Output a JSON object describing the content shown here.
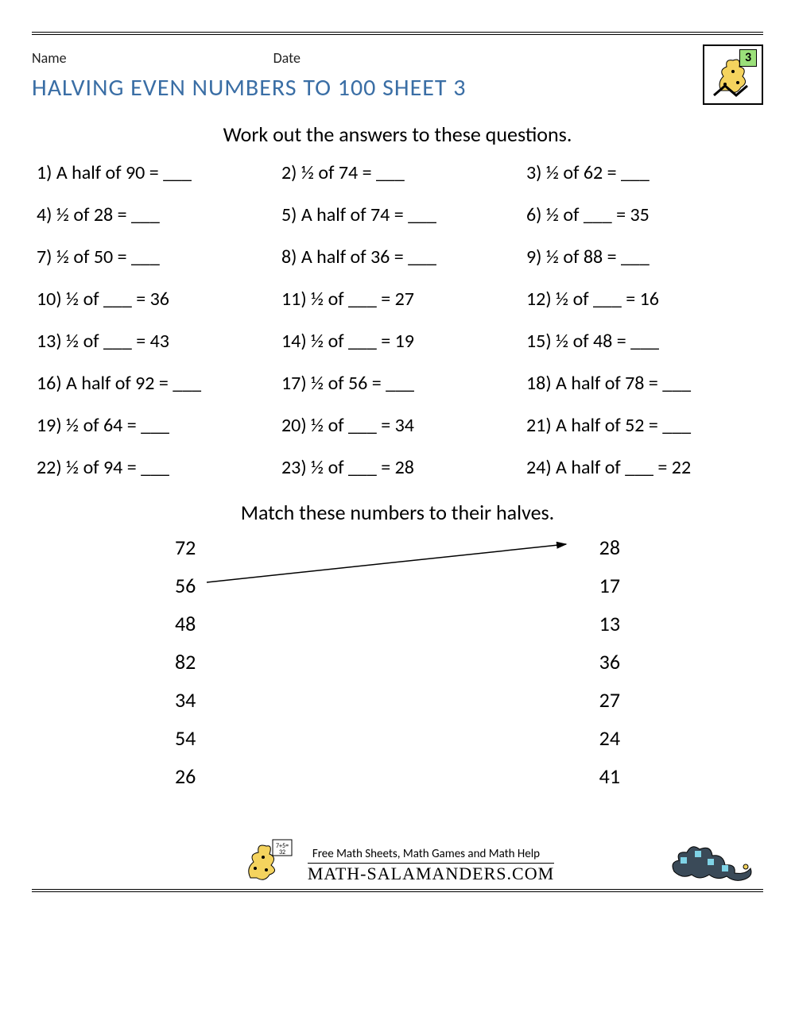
{
  "header": {
    "name_label": "Name",
    "date_label": "Date",
    "grade_number": "3"
  },
  "title": "HALVING EVEN NUMBERS TO 100 SHEET 3",
  "instructions": "Work out the answers to these questions.",
  "questions": [
    "1) A half of 90 = ___",
    "2) ½ of 74 = ___",
    "3) ½ of 62 = ___",
    "4) ½ of 28 = ___",
    "5) A half of 74 = ___",
    "6) ½ of ___ = 35",
    "7) ½ of 50 = ___",
    "8) A half of 36 = ___",
    "9) ½ of 88 = ___",
    "10) ½ of ___ = 36",
    "11) ½ of ___ = 27",
    "12) ½ of ___ = 16",
    "13) ½ of ___ = 43",
    "14) ½ of ___ = 19",
    "15) ½ of 48 = ___",
    "16) A half of 92 = ___",
    "17) ½ of 56 = ___",
    "18) A half of 78 = ___",
    "19) ½ of 64 = ___",
    "20) ½ of ___ = 34",
    "21) A half of 52 = ___",
    "22) ½ of 94 = ___",
    "23) ½ of ___ = 28",
    "24) A half of ___  = 22"
  ],
  "match": {
    "title": "Match these numbers to their halves.",
    "left": [
      "72",
      "56",
      "48",
      "82",
      "34",
      "54",
      "26"
    ],
    "right": [
      "28",
      "17",
      "13",
      "36",
      "27",
      "24",
      "41"
    ],
    "example_line": {
      "from_index": 1,
      "to_index": 0
    }
  },
  "footer": {
    "line1": "Free Math Sheets, Math Games and Math Help",
    "line2": "MATH-SALAMANDERS.COM"
  },
  "colors": {
    "title": "#3a6ea5",
    "text": "#1a1a1a",
    "rule": "#000000",
    "badge_num_bg": "#9be07a"
  }
}
